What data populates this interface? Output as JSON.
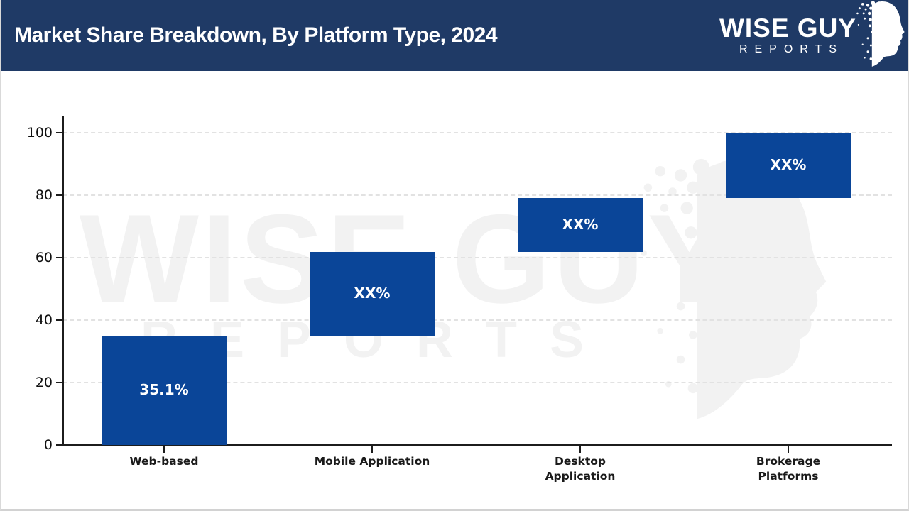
{
  "header": {
    "title": "Market Share Breakdown, By Platform Type, 2024",
    "logo": {
      "line1": "WISE GUY",
      "line2": "REPORTS"
    }
  },
  "watermark": {
    "line1": "WISE GUY",
    "line2": "REPORTS"
  },
  "colors": {
    "header_bg": "#1f3a66",
    "bar_fill": "#0a4598",
    "bar_label_text": "#ffffff",
    "axis": "#1c1c1c",
    "gridline": "#e2e2e2",
    "watermark": "#f2f2f2",
    "frame_border": "#d9d9d9",
    "background": "#ffffff"
  },
  "chart_data": {
    "type": "bar",
    "subtype": "waterfall",
    "title": "Market Share Breakdown, By Platform Type, 2024",
    "xlabel": "",
    "ylabel": "",
    "ylim": [
      0,
      105
    ],
    "yticks": [
      0,
      20,
      40,
      60,
      80,
      100
    ],
    "grid": "horizontal-dashed",
    "legend": "none",
    "categories": [
      "Web-based",
      "Mobile Application",
      "Desktop\nApplication",
      "Brokerage\nPlatforms"
    ],
    "segments": [
      {
        "category": "Web-based",
        "start": 0,
        "end": 35.1,
        "label": "35.1%"
      },
      {
        "category": "Mobile Application",
        "start": 35.1,
        "end": 61.8,
        "label": "XX%"
      },
      {
        "category": "Desktop\nApplication",
        "start": 61.8,
        "end": 79.2,
        "label": "XX%"
      },
      {
        "category": "Brokerage\nPlatforms",
        "start": 79.2,
        "end": 100,
        "label": "XX%"
      }
    ]
  }
}
